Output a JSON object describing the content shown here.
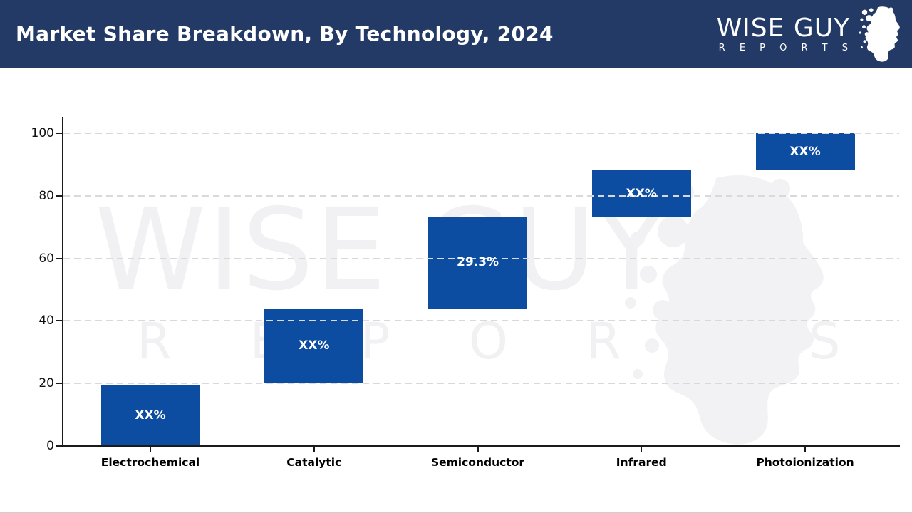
{
  "header": {
    "title": "Market Share Breakdown, By Technology, 2024",
    "bg_color": "#233A66",
    "logo": {
      "line1": "WISE GUY",
      "line2": "R E P O R T S"
    }
  },
  "watermark": {
    "line1": "WISE GUY",
    "line2": "R E P O R T S"
  },
  "chart_data": {
    "type": "bar",
    "subtype": "floating-waterfall",
    "title": "Market Share Breakdown, By Technology, 2024",
    "categories": [
      "Electrochemical",
      "Catalytic",
      "Semiconductor",
      "Infrared",
      "Photoionization"
    ],
    "bars": [
      {
        "category": "Electrochemical",
        "start": 0,
        "end": 19.6,
        "label": "XX%"
      },
      {
        "category": "Catalytic",
        "start": 20,
        "end": 44,
        "label": "XX%"
      },
      {
        "category": "Semiconductor",
        "start": 44,
        "end": 73.3,
        "label": "29.3%",
        "value": 29.3
      },
      {
        "category": "Infrared",
        "start": 73.4,
        "end": 88.1,
        "label": "XX%"
      },
      {
        "category": "Photoionization",
        "start": 88.2,
        "end": 100.2,
        "label": "XX%"
      }
    ],
    "y_ticks": [
      0,
      20,
      40,
      60,
      80,
      100
    ],
    "ylim": [
      0,
      105
    ],
    "xlabel": "",
    "ylabel": "",
    "bar_color": "#0D4DA1",
    "grid": "horizontal-dashed",
    "legend": "none"
  }
}
